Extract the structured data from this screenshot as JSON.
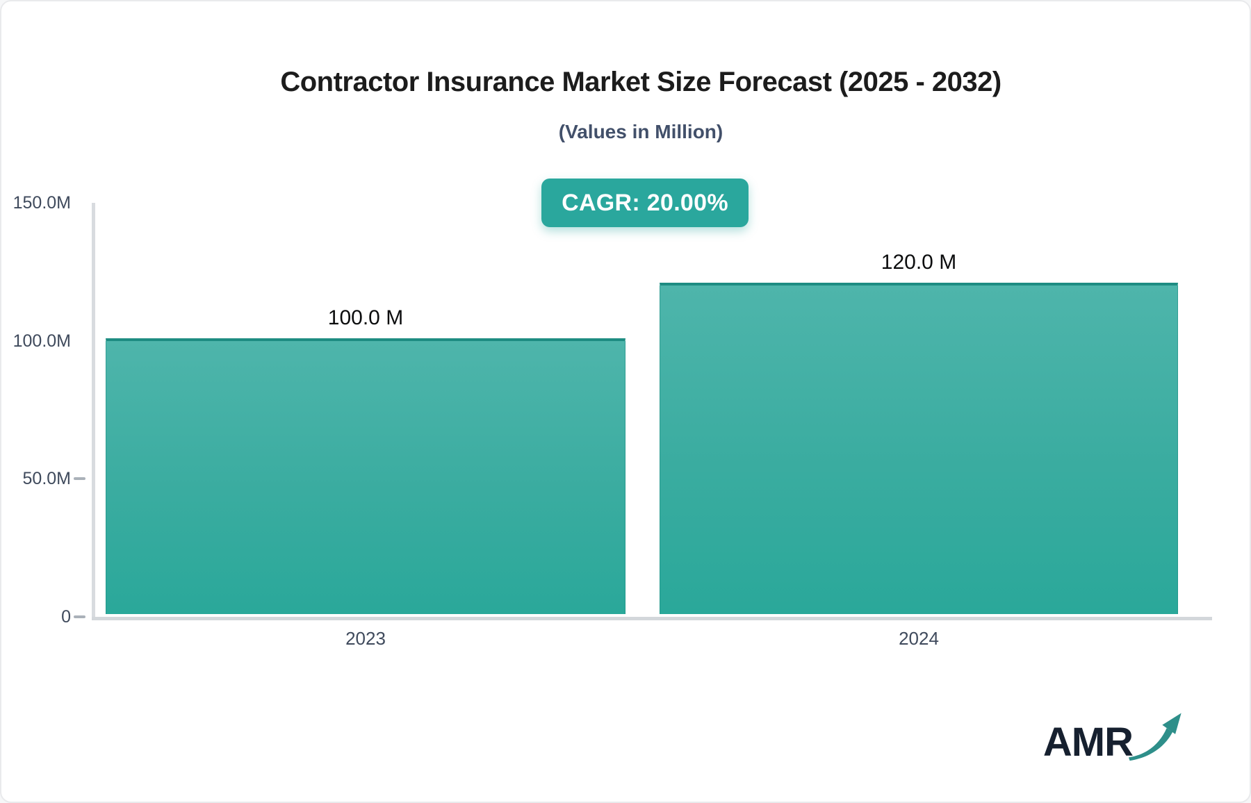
{
  "header": {
    "title": "Contractor Insurance Market Size Forecast (2025 - 2032)",
    "subtitle": "(Values in Million)",
    "cagr_badge": "CAGR: 20.00%"
  },
  "chart_data": {
    "type": "bar",
    "title": "Contractor Insurance Market Size Forecast (2025 - 2032)",
    "subtitle": "(Values in Million)",
    "unit": "Million",
    "cagr_percent": 20.0,
    "categories": [
      "2023",
      "2024"
    ],
    "values": [
      100.0,
      120.0
    ],
    "value_labels": [
      "100.0 M",
      "120.0 M"
    ],
    "ylim": [
      0,
      150
    ],
    "yticks": [
      {
        "label": "150.0M",
        "value": 150
      },
      {
        "label": "100.0M",
        "value": 100
      },
      {
        "label": "50.0M",
        "value": 50
      },
      {
        "label": "0",
        "value": 0
      }
    ],
    "grid": false,
    "legend": false,
    "colors": {
      "bar_gradient_top": "#4eb5ab",
      "bar_gradient_bottom": "#2aa89a",
      "bar_border": "#1e8c82",
      "badge_background": "#2aa79d",
      "axis_line": "#d8dbdf",
      "axis_text": "#3f4a5c",
      "title_text": "#1c1c1c",
      "subtitle_text": "#42506a"
    }
  },
  "logo": {
    "text": "AMR"
  }
}
